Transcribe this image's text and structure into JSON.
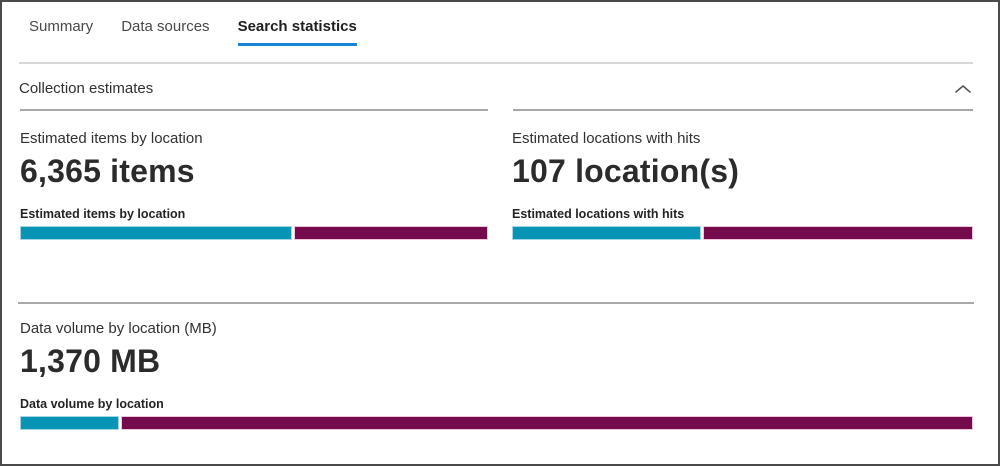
{
  "tabs": [
    {
      "label": "Summary",
      "active": false
    },
    {
      "label": "Data sources",
      "active": false
    },
    {
      "label": "Search statistics",
      "active": true
    }
  ],
  "section": {
    "title": "Collection estimates",
    "collapse_icon": "chevron-up-icon"
  },
  "stats": {
    "items": {
      "caption": "Estimated items by location",
      "value": "6,365 items",
      "bar_label": "Estimated items by location"
    },
    "locations": {
      "caption": "Estimated locations with hits",
      "value": "107 location(s)",
      "bar_label": "Estimated locations with hits"
    },
    "volume": {
      "caption": "Data volume by location (MB)",
      "value": "1,370 MB",
      "bar_label": "Data volume by location"
    }
  },
  "colors": {
    "teal": "#0894B5",
    "magenta": "#750B4C",
    "tab_underline": "#1884D8",
    "divider_light": "#d6d6d6",
    "divider_dark": "#a8a8a8"
  },
  "chart_data": [
    {
      "type": "bar",
      "subtype": "stacked-horizontal",
      "title": "Estimated items by location",
      "total_label": "6,365 items",
      "series": [
        {
          "name": "segment-teal",
          "color": "#0894B5",
          "fraction": 0.582
        },
        {
          "name": "segment-magenta",
          "color": "#750B4C",
          "fraction": 0.418
        }
      ],
      "legend": "none",
      "axes": "none"
    },
    {
      "type": "bar",
      "subtype": "stacked-horizontal",
      "title": "Estimated locations with hits",
      "total_label": "107 location(s)",
      "series": [
        {
          "name": "segment-teal",
          "color": "#0894B5",
          "fraction": 0.409
        },
        {
          "name": "segment-magenta",
          "color": "#750B4C",
          "fraction": 0.591
        }
      ],
      "legend": "none",
      "axes": "none"
    },
    {
      "type": "bar",
      "subtype": "stacked-horizontal",
      "title": "Data volume by location",
      "total_label": "1,370 MB",
      "series": [
        {
          "name": "segment-teal",
          "color": "#0894B5",
          "fraction": 0.104
        },
        {
          "name": "segment-magenta",
          "color": "#750B4C",
          "fraction": 0.896
        }
      ],
      "legend": "none",
      "axes": "none"
    }
  ]
}
